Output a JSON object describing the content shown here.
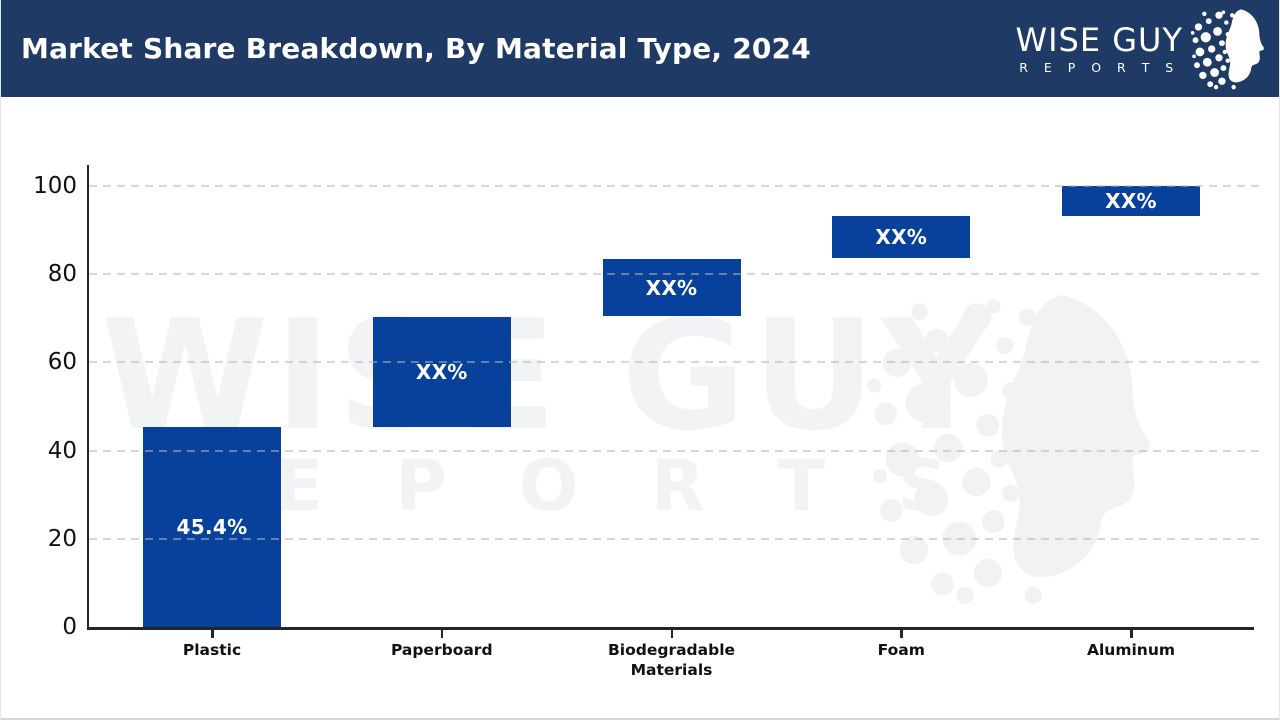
{
  "header": {
    "title": "Market Share Breakdown, By Material Type, 2024",
    "logo": {
      "line1": "WISE GUY",
      "line2": "R E P O R T S",
      "icon": "dotted-head-profile"
    }
  },
  "watermark": {
    "line1": "WISE GUY",
    "line2": "R E P O R T S",
    "icon": "dotted-head-profile"
  },
  "chart_data": {
    "type": "bar",
    "subtype": "waterfall",
    "title": "Market Share Breakdown, By Material Type, 2024",
    "categories": [
      "Plastic",
      "Paperboard",
      "Biodegradable Materials",
      "Foam",
      "Aluminum"
    ],
    "segments": [
      {
        "category": "Plastic",
        "start": 0,
        "end": 45.4,
        "label": "45.4%"
      },
      {
        "category": "Paperboard",
        "start": 45.4,
        "end": 70.4,
        "label": "XX%"
      },
      {
        "category": "Biodegradable Materials",
        "start": 70.5,
        "end": 83.4,
        "label": "XX%"
      },
      {
        "category": "Foam",
        "start": 83.7,
        "end": 93.2,
        "label": "XX%"
      },
      {
        "category": "Aluminum",
        "start": 93.2,
        "end": 100,
        "label": "XX%"
      }
    ],
    "y_ticks": [
      0,
      20,
      40,
      60,
      80,
      100
    ],
    "ylim": [
      0,
      104.8
    ],
    "xlabel": "",
    "ylabel": "",
    "grid": "horizontal-dashed",
    "legend": "none"
  },
  "colors": {
    "header_bg": "#203a66",
    "bar": "#07419b",
    "bar_label": "#ffffff",
    "watermark": "#f2f3f5",
    "axis": "#262626",
    "grid": "#dcdcdf"
  }
}
